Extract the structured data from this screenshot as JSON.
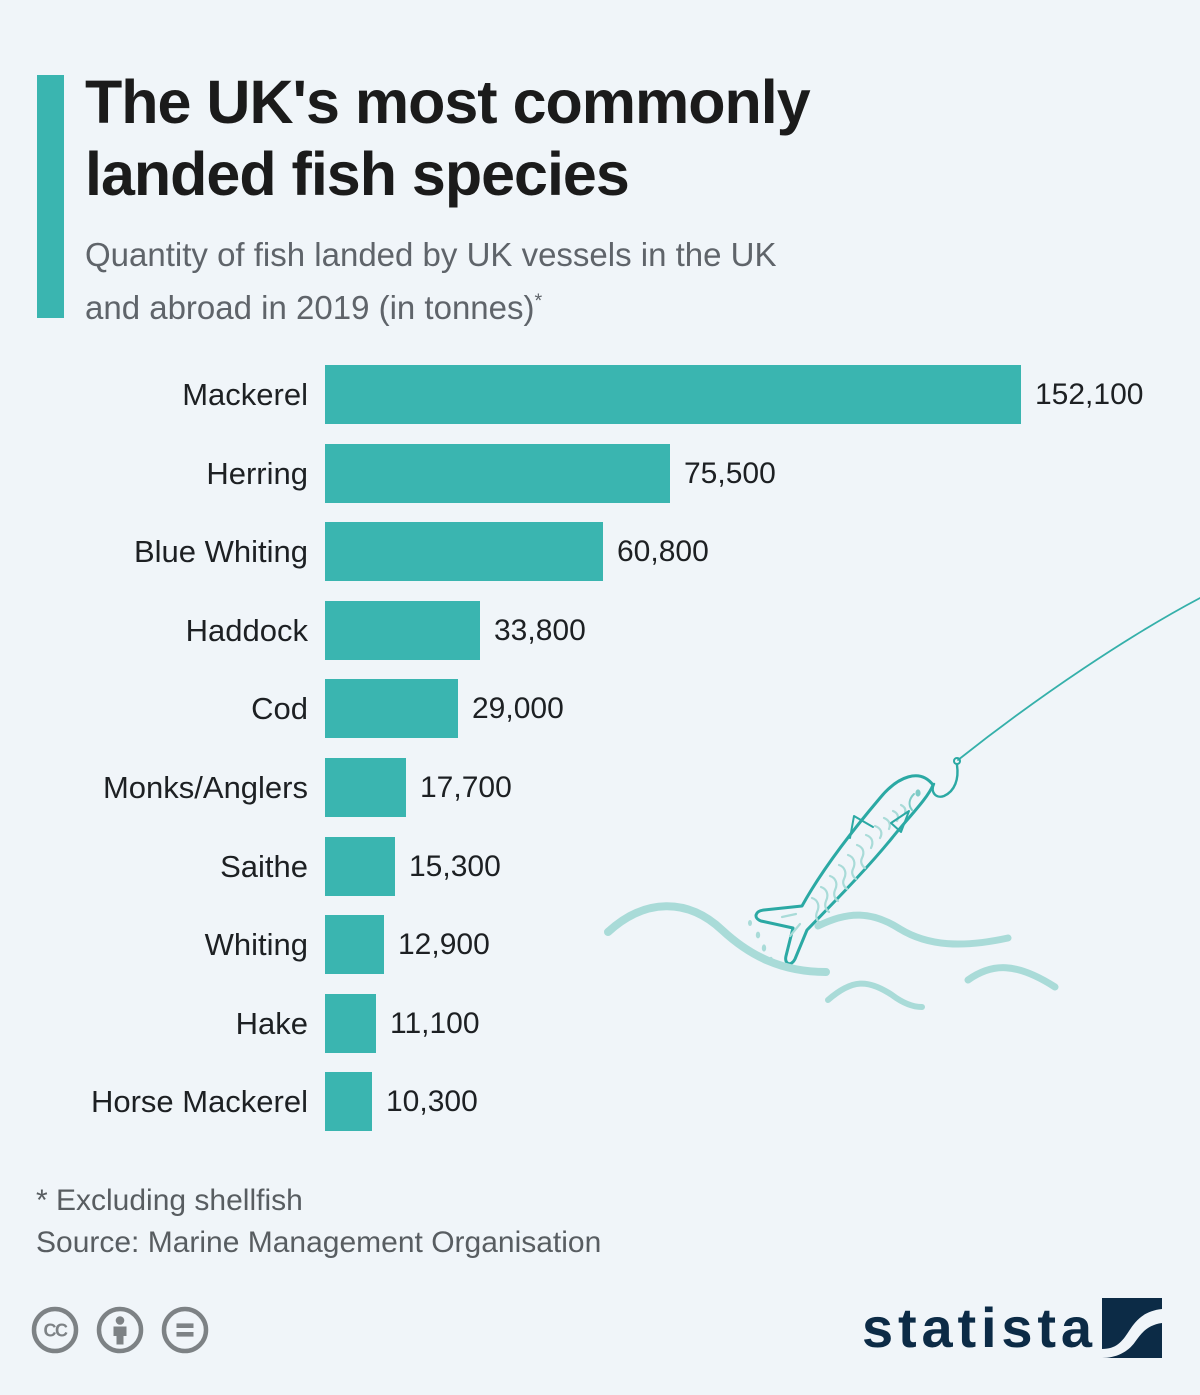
{
  "colors": {
    "background": "#f0f5f9",
    "accent_bar": "#3ab5b0",
    "bar": "#3ab5b0",
    "title_text": "#1b1b1b",
    "subtitle_text": "#5f646a",
    "label_text": "#1d2023",
    "footer_text": "#585d61",
    "license_icon": "#7d8285",
    "statista_navy": "#0c2b46",
    "fish_outline": "#2ba9a4",
    "fish_detail": "#a9dbd8"
  },
  "header": {
    "title_line1": "The UK's most commonly",
    "title_line2": "landed fish species",
    "subtitle_line1": "Quantity of fish landed by UK vessels in the UK",
    "subtitle_line2": "and abroad in 2019 (in tonnes)",
    "footnote_marker": "*"
  },
  "chart_data": {
    "type": "bar",
    "orientation": "horizontal",
    "title": "The UK's most commonly landed fish species",
    "subtitle": "Quantity of fish landed by UK vessels in the UK and abroad in 2019 (in tonnes)*",
    "unit": "tonnes",
    "categories": [
      "Mackerel",
      "Herring",
      "Blue Whiting",
      "Haddock",
      "Cod",
      "Monks/Anglers",
      "Saithe",
      "Whiting",
      "Hake",
      "Horse Mackerel"
    ],
    "values": [
      152100,
      75500,
      60800,
      33800,
      29000,
      17700,
      15300,
      12900,
      11100,
      10300
    ],
    "value_labels": [
      "152,100",
      "75,500",
      "60,800",
      "33,800",
      "29,000",
      "17,700",
      "15,300",
      "12,900",
      "11,100",
      "10,300"
    ],
    "xlim": [
      0,
      160000
    ],
    "grid": false,
    "bar_color": "#3ab5b0",
    "value_label_position": "end"
  },
  "footer": {
    "footnote": "* Excluding shellfish",
    "source": "Source: Marine Management Organisation"
  },
  "branding": {
    "logo_text": "statista",
    "license_icons": [
      "cc-icon",
      "cc-attribution-icon",
      "cc-nd-icon"
    ]
  }
}
